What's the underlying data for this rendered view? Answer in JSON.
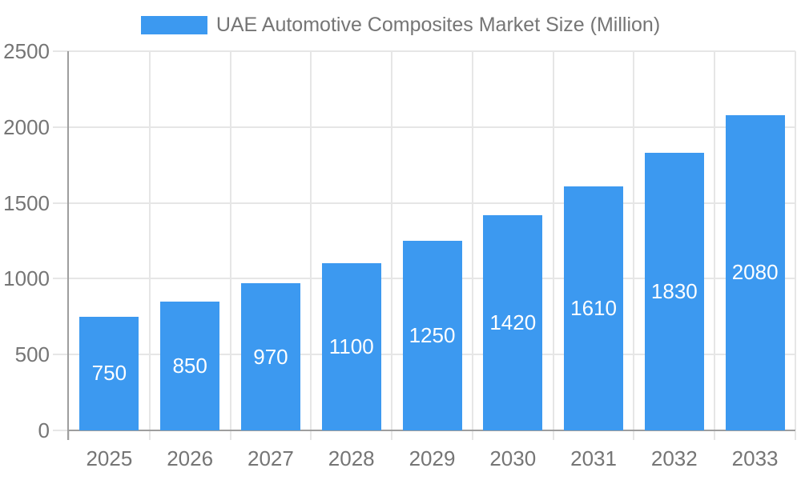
{
  "chart_data": {
    "type": "bar",
    "title": "UAE Automotive Composites Market Size (Million)",
    "categories": [
      "2025",
      "2026",
      "2027",
      "2028",
      "2029",
      "2030",
      "2031",
      "2032",
      "2033"
    ],
    "values": [
      750,
      850,
      970,
      1100,
      1250,
      1420,
      1610,
      1830,
      2080
    ],
    "xlabel": "",
    "ylabel": "",
    "ylim": [
      0,
      2500
    ],
    "yticks": [
      0,
      500,
      1000,
      1500,
      2000,
      2500
    ],
    "grid": true,
    "legend_position": "top",
    "colors": {
      "bar": "#3C99F0",
      "grid": "#E6E6E6",
      "axis": "#9E9E9E",
      "tick_label": "#757575",
      "value_label": "#FFFFFF",
      "background": "#FFFFFF"
    }
  }
}
